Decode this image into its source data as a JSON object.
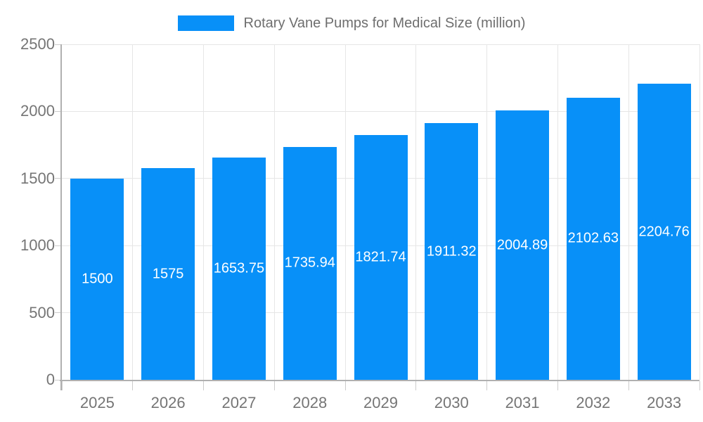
{
  "legend": {
    "label": "Rotary Vane Pumps for Medical Size (million)"
  },
  "chart_data": {
    "type": "bar",
    "title": "Rotary Vane Pumps for Medical Size (million)",
    "categories": [
      "2025",
      "2026",
      "2027",
      "2028",
      "2029",
      "2030",
      "2031",
      "2032",
      "2033"
    ],
    "values": [
      1500,
      1575,
      1653.75,
      1735.94,
      1821.74,
      1911.32,
      2004.89,
      2102.63,
      2204.76
    ],
    "value_labels": [
      "1500",
      "1575",
      "1653.75",
      "1735.94",
      "1821.74",
      "1911.32",
      "2004.89",
      "2102.63",
      "2204.76"
    ],
    "xlabel": "",
    "ylabel": "",
    "ylim": [
      0,
      2500
    ],
    "yticks": [
      0,
      500,
      1000,
      1500,
      2000,
      2500
    ],
    "grid": true,
    "legend_position": "top",
    "colors": {
      "bar": "#0890f8",
      "grid": "#e6e6e6",
      "axis": "#b0b0b0",
      "tick": "#cccccc",
      "tick_label": "#757575",
      "legend_label": "#6e6e6e",
      "value_label": "#ffffff",
      "background": "#ffffff"
    }
  }
}
